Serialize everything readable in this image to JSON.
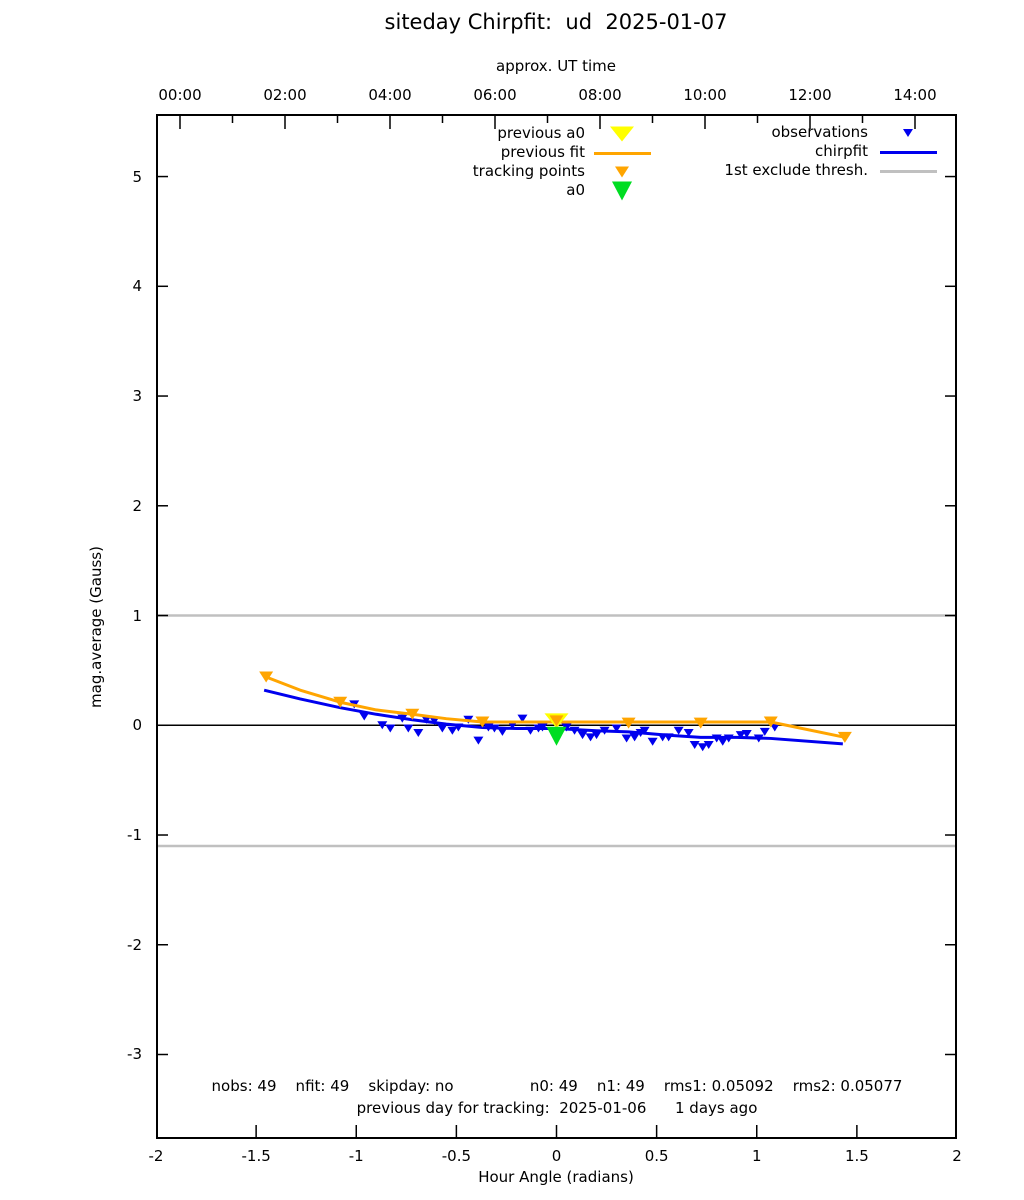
{
  "title": "siteday Chirpfit:  ud  2025-01-07",
  "stats": {
    "line1": "nobs: 49    nfit: 49    skipday: no                n0: 49    n1: 49    rms1: 0.05092    rms2: 0.05077",
    "line2": "previous day for tracking:  2025-01-06      1 days ago"
  },
  "legend": {
    "left": [
      {
        "label": "previous a0",
        "series": "previous a0"
      },
      {
        "label": "previous fit",
        "series": "previous fit"
      },
      {
        "label": "tracking points",
        "series": "tracking points"
      },
      {
        "label": "a0",
        "series": "a0"
      }
    ],
    "right": [
      {
        "label": "observations",
        "series": "observations"
      },
      {
        "label": "chirpfit",
        "series": "chirpfit"
      },
      {
        "label": "1st exclude thresh.",
        "series": "1st exclude thresh."
      }
    ]
  },
  "chart_data": {
    "type": "scatter",
    "title": "siteday Chirpfit: ud 2025-01-07",
    "xlabel": "Hour Angle (radians)",
    "ylabel": "mag.average (Gauss)",
    "xlim": [
      -2,
      2
    ],
    "ylim": [
      -3.77,
      5.57
    ],
    "grid": false,
    "legend_position": "top-inside",
    "x_ticks": [
      {
        "v": -2,
        "label": "-2"
      },
      {
        "v": -1.5,
        "label": "-1.5"
      },
      {
        "v": -1,
        "label": "-1"
      },
      {
        "v": -0.5,
        "label": "-0.5"
      },
      {
        "v": 0,
        "label": "0"
      },
      {
        "v": 0.5,
        "label": "0.5"
      },
      {
        "v": 1,
        "label": "1"
      },
      {
        "v": 1.5,
        "label": "1.5"
      },
      {
        "v": 2,
        "label": "2"
      }
    ],
    "y_ticks": [
      {
        "v": -3,
        "label": "-3"
      },
      {
        "v": -2,
        "label": "-2"
      },
      {
        "v": -1,
        "label": "-1"
      },
      {
        "v": 0,
        "label": "0"
      },
      {
        "v": 1,
        "label": "1"
      },
      {
        "v": 2,
        "label": "2"
      },
      {
        "v": 3,
        "label": "3"
      },
      {
        "v": 4,
        "label": "4"
      },
      {
        "v": 5,
        "label": "5"
      }
    ],
    "top_axis": {
      "label": "approx. UT time",
      "major_tick_labels": [
        "00:00",
        "02:00",
        "04:00",
        "06:00",
        "08:00",
        "10:00",
        "12:00",
        "14:00"
      ]
    },
    "zero_line": {
      "v": 0,
      "color": "#000000"
    },
    "series": [
      {
        "name": "1st exclude thresh.",
        "kind": "hlines",
        "color": "#c0c0c0",
        "values": [
          1.0,
          -1.1
        ]
      },
      {
        "name": "chirpfit",
        "kind": "line",
        "color": "#0000ee",
        "points": [
          [
            -1.46,
            0.32
          ],
          [
            -1.28,
            0.24
          ],
          [
            -1.08,
            0.16
          ],
          [
            -0.9,
            0.1
          ],
          [
            -0.72,
            0.05
          ],
          [
            -0.55,
            0.01
          ],
          [
            -0.37,
            -0.02
          ],
          [
            -0.2,
            -0.03
          ],
          [
            0.0,
            -0.03
          ],
          [
            0.2,
            -0.05
          ],
          [
            0.36,
            -0.06
          ],
          [
            0.55,
            -0.09
          ],
          [
            0.72,
            -0.11
          ],
          [
            0.9,
            -0.11
          ],
          [
            1.07,
            -0.12
          ],
          [
            1.43,
            -0.17
          ]
        ]
      },
      {
        "name": "observations",
        "kind": "points",
        "marker": "triangle-down",
        "color": "#0000ee",
        "size": [
          10,
          8
        ],
        "points": [
          [
            -1.01,
            0.19
          ],
          [
            -0.96,
            0.08
          ],
          [
            -0.87,
            0.0
          ],
          [
            -0.83,
            -0.03
          ],
          [
            -0.77,
            0.06
          ],
          [
            -0.74,
            -0.03
          ],
          [
            -0.69,
            -0.07
          ],
          [
            -0.65,
            0.05
          ],
          [
            -0.61,
            0.04
          ],
          [
            -0.57,
            -0.03
          ],
          [
            -0.52,
            -0.05
          ],
          [
            -0.49,
            -0.02
          ],
          [
            -0.44,
            0.05
          ],
          [
            -0.39,
            -0.14
          ],
          [
            -0.34,
            -0.02
          ],
          [
            -0.31,
            -0.03
          ],
          [
            -0.27,
            -0.06
          ],
          [
            -0.22,
            0.0
          ],
          [
            -0.17,
            0.06
          ],
          [
            -0.13,
            -0.05
          ],
          [
            -0.09,
            -0.03
          ],
          [
            -0.07,
            -0.02
          ],
          [
            0.05,
            -0.02
          ],
          [
            0.09,
            -0.05
          ],
          [
            0.13,
            -0.09
          ],
          [
            0.17,
            -0.11
          ],
          [
            0.2,
            -0.09
          ],
          [
            0.24,
            -0.05
          ],
          [
            0.3,
            -0.03
          ],
          [
            0.35,
            -0.12
          ],
          [
            0.39,
            -0.11
          ],
          [
            0.42,
            -0.07
          ],
          [
            0.44,
            -0.05
          ],
          [
            0.48,
            -0.15
          ],
          [
            0.53,
            -0.11
          ],
          [
            0.56,
            -0.11
          ],
          [
            0.61,
            -0.05
          ],
          [
            0.66,
            -0.07
          ],
          [
            0.69,
            -0.18
          ],
          [
            0.73,
            -0.2
          ],
          [
            0.76,
            -0.18
          ],
          [
            0.8,
            -0.12
          ],
          [
            0.83,
            -0.15
          ],
          [
            0.86,
            -0.12
          ],
          [
            0.92,
            -0.09
          ],
          [
            0.95,
            -0.08
          ],
          [
            1.01,
            -0.12
          ],
          [
            1.04,
            -0.06
          ],
          [
            1.09,
            -0.02
          ]
        ]
      },
      {
        "name": "previous fit",
        "kind": "line",
        "color": "#ffa500",
        "points": [
          [
            -1.45,
            0.44
          ],
          [
            -1.28,
            0.32
          ],
          [
            -1.08,
            0.21
          ],
          [
            -0.9,
            0.14
          ],
          [
            -0.72,
            0.1
          ],
          [
            -0.55,
            0.06
          ],
          [
            -0.37,
            0.03
          ],
          [
            -0.2,
            0.03
          ],
          [
            0.0,
            0.03
          ],
          [
            0.2,
            0.03
          ],
          [
            0.36,
            0.03
          ],
          [
            0.55,
            0.03
          ],
          [
            0.72,
            0.03
          ],
          [
            0.9,
            0.03
          ],
          [
            1.07,
            0.03
          ],
          [
            1.44,
            -0.11
          ]
        ]
      },
      {
        "name": "previous a0",
        "kind": "points",
        "marker": "triangle-down",
        "color": "#ffff00",
        "size": [
          24,
          15
        ],
        "points": [
          [
            0.0,
            0.04
          ]
        ]
      },
      {
        "name": "tracking points",
        "kind": "points",
        "marker": "triangle-down",
        "color": "#ffa500",
        "size": [
          14,
          11
        ],
        "points": [
          [
            -1.45,
            0.44
          ],
          [
            -1.08,
            0.21
          ],
          [
            -0.72,
            0.1
          ],
          [
            -0.37,
            0.03
          ],
          [
            0.0,
            0.04
          ],
          [
            0.36,
            0.02
          ],
          [
            0.72,
            0.02
          ],
          [
            1.07,
            0.03
          ],
          [
            1.44,
            -0.11
          ]
        ]
      },
      {
        "name": "a0",
        "kind": "points",
        "marker": "triangle-down",
        "color": "#00dd22",
        "size": [
          20,
          19
        ],
        "points": [
          [
            0.0,
            -0.1
          ]
        ]
      }
    ]
  }
}
